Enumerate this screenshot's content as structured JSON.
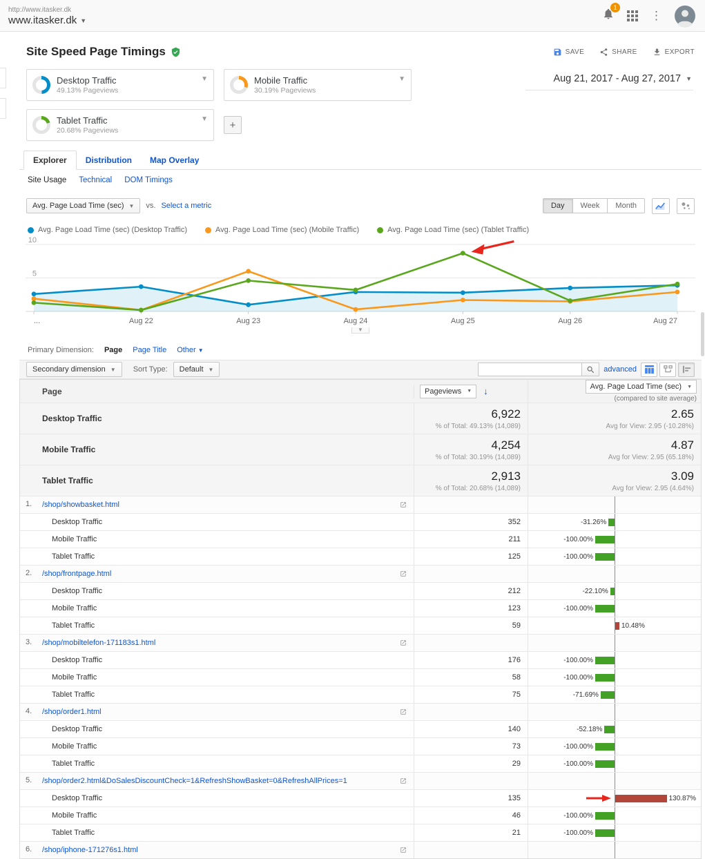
{
  "topbar": {
    "url": "http://www.itasker.dk",
    "site": "www.itasker.dk",
    "notification_badge": "1"
  },
  "header": {
    "title": "Site Speed Page Timings",
    "save_label": "SAVE",
    "share_label": "SHARE",
    "export_label": "EXPORT"
  },
  "segments": {
    "cards": [
      {
        "title": "Desktop Traffic",
        "subtitle": "49.13% Pageviews",
        "pct": 49.13,
        "color": "#058dc7"
      },
      {
        "title": "Mobile Traffic",
        "subtitle": "30.19% Pageviews",
        "pct": 30.19,
        "color": "#f8981d"
      },
      {
        "title": "Tablet Traffic",
        "subtitle": "20.68% Pageviews",
        "pct": 20.68,
        "color": "#5aa71e"
      }
    ],
    "add_label": "+"
  },
  "daterange": "Aug 21, 2017 - Aug 27, 2017",
  "tabs": {
    "items": [
      "Explorer",
      "Distribution",
      "Map Overlay"
    ],
    "active": "Explorer"
  },
  "subtabs": {
    "items": [
      "Site Usage",
      "Technical",
      "DOM Timings"
    ],
    "active": "Site Usage"
  },
  "controls": {
    "metric": "Avg. Page Load Time (sec)",
    "vs_label": "vs.",
    "select_metric": "Select a metric",
    "granularity": [
      "Day",
      "Week",
      "Month"
    ],
    "active_granularity": "Day"
  },
  "chart_data": {
    "type": "line",
    "x": [
      "...",
      "Aug 22",
      "Aug 23",
      "Aug 24",
      "Aug 25",
      "Aug 26",
      "Aug 27"
    ],
    "ylim": [
      0,
      10
    ],
    "yticks": [
      5,
      10
    ],
    "grid": true,
    "legend_position": "top",
    "series": [
      {
        "name": "Avg. Page Load Time (sec) (Desktop Traffic)",
        "color": "#058dc7",
        "area": true,
        "values": [
          2.6,
          3.7,
          1.0,
          2.9,
          2.8,
          3.5,
          3.9
        ]
      },
      {
        "name": "Avg. Page Load Time (sec) (Mobile Traffic)",
        "color": "#f8981d",
        "area": false,
        "values": [
          1.9,
          0.2,
          6.0,
          0.3,
          1.7,
          1.5,
          2.9
        ]
      },
      {
        "name": "Avg. Page Load Time (sec) (Tablet Traffic)",
        "color": "#5aa71e",
        "area": false,
        "values": [
          1.3,
          0.2,
          4.6,
          3.2,
          8.7,
          1.6,
          4.1
        ]
      }
    ],
    "annotation": {
      "type": "red-arrow",
      "series": 2,
      "index": 4
    }
  },
  "primary_dimension": {
    "label": "Primary Dimension:",
    "options": [
      "Page",
      "Page Title",
      "Other"
    ],
    "active": "Page"
  },
  "toolbar": {
    "secondary_dimension": "Secondary dimension",
    "sort_type_label": "Sort Type:",
    "sort_type_value": "Default",
    "search_value": "",
    "advanced_label": "advanced"
  },
  "table": {
    "headers": {
      "page": "Page",
      "pageviews": "Pageviews",
      "metric": "Avg. Page Load Time (sec)",
      "metric_caption": "(compared to site average)"
    },
    "totals": [
      {
        "label": "Desktop Traffic",
        "pageviews": "6,922",
        "pageviews_sub": "% of Total: 49.13% (14,089)",
        "load": "2.65",
        "load_sub": "Avg for View: 2.95 (-10.28%)"
      },
      {
        "label": "Mobile Traffic",
        "pageviews": "4,254",
        "pageviews_sub": "% of Total: 30.19% (14,089)",
        "load": "4.87",
        "load_sub": "Avg for View: 2.95 (65.18%)"
      },
      {
        "label": "Tablet Traffic",
        "pageviews": "2,913",
        "pageviews_sub": "% of Total: 20.68% (14,089)",
        "load": "3.09",
        "load_sub": "Avg for View: 2.95 (4.64%)"
      }
    ],
    "pages": [
      {
        "num": "1.",
        "url": "/shop/showbasket.html",
        "rows": [
          {
            "label": "Desktop Traffic",
            "pageviews": "352",
            "pct": "-31.26%"
          },
          {
            "label": "Mobile Traffic",
            "pageviews": "211",
            "pct": "-100.00%"
          },
          {
            "label": "Tablet Traffic",
            "pageviews": "125",
            "pct": "-100.00%"
          }
        ]
      },
      {
        "num": "2.",
        "url": "/shop/frontpage.html",
        "rows": [
          {
            "label": "Desktop Traffic",
            "pageviews": "212",
            "pct": "-22.10%"
          },
          {
            "label": "Mobile Traffic",
            "pageviews": "123",
            "pct": "-100.00%"
          },
          {
            "label": "Tablet Traffic",
            "pageviews": "59",
            "pct": "10.48%"
          }
        ]
      },
      {
        "num": "3.",
        "url": "/shop/mobiltelefon-171183s1.html",
        "rows": [
          {
            "label": "Desktop Traffic",
            "pageviews": "176",
            "pct": "-100.00%"
          },
          {
            "label": "Mobile Traffic",
            "pageviews": "58",
            "pct": "-100.00%"
          },
          {
            "label": "Tablet Traffic",
            "pageviews": "75",
            "pct": "-71.69%"
          }
        ]
      },
      {
        "num": "4.",
        "url": "/shop/order1.html",
        "rows": [
          {
            "label": "Desktop Traffic",
            "pageviews": "140",
            "pct": "-52.18%"
          },
          {
            "label": "Mobile Traffic",
            "pageviews": "73",
            "pct": "-100.00%"
          },
          {
            "label": "Tablet Traffic",
            "pageviews": "29",
            "pct": "-100.00%"
          }
        ]
      },
      {
        "num": "5.",
        "url": "/shop/order2.html&DoSalesDiscountCheck=1&RefreshShowBasket=0&RefreshAllPrices=1",
        "rows": [
          {
            "label": "Desktop Traffic",
            "pageviews": "135",
            "pct": "130.87%",
            "arrow": true
          },
          {
            "label": "Mobile Traffic",
            "pageviews": "46",
            "pct": "-100.00%"
          },
          {
            "label": "Tablet Traffic",
            "pageviews": "21",
            "pct": "-100.00%"
          }
        ]
      },
      {
        "num": "6.",
        "url": "/shop/iphone-171276s1.html",
        "rows": []
      }
    ]
  }
}
